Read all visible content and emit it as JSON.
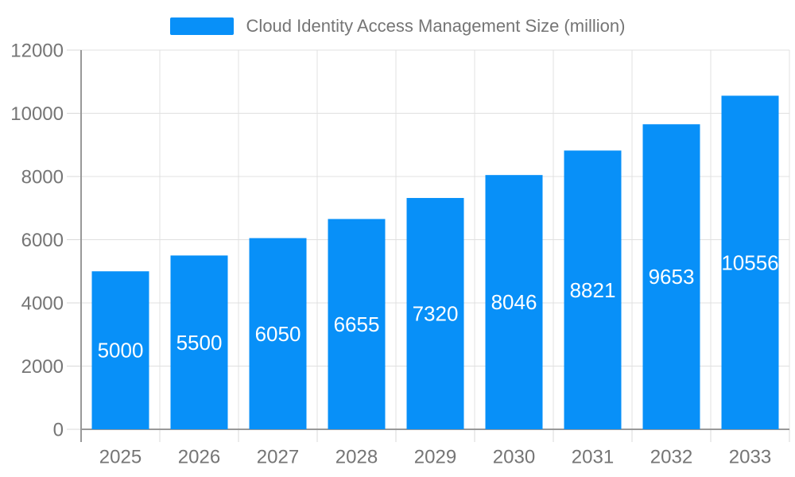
{
  "chart_data": {
    "type": "bar",
    "title": "Cloud Identity Access Management Size (million)",
    "xlabel": "",
    "ylabel": "",
    "categories": [
      "2025",
      "2026",
      "2027",
      "2028",
      "2029",
      "2030",
      "2031",
      "2032",
      "2033"
    ],
    "values": [
      5000,
      5500,
      6050,
      6655,
      7320,
      8046,
      8821,
      9653,
      10556
    ],
    "ylim": [
      0,
      12000
    ],
    "y_ticks": [
      0,
      2000,
      4000,
      6000,
      8000,
      10000,
      12000
    ],
    "grid": true,
    "legend_position": "top-center",
    "colors": {
      "bar": "#0890f8",
      "value_label": "#ffffff",
      "axis_label": "#757575",
      "axis_line": "#999999",
      "grid_line": "#e0e0e0",
      "tick_line": "#d9d9d9",
      "background": "#ffffff"
    }
  }
}
